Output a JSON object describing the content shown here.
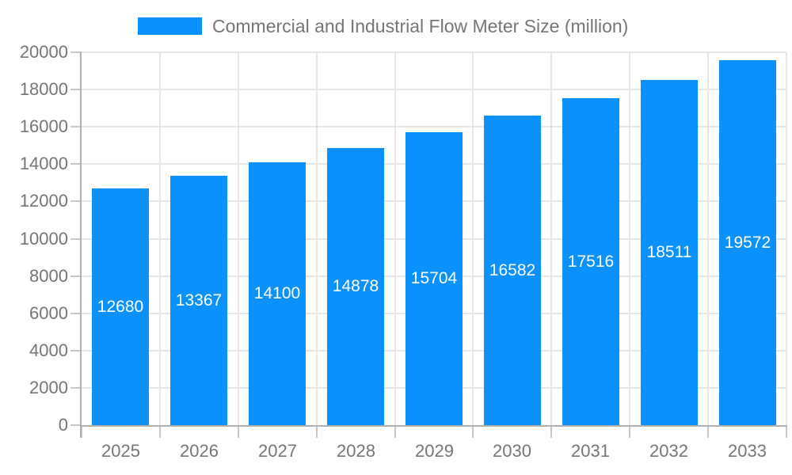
{
  "chart_data": {
    "type": "bar",
    "title": "Commercial and Industrial Flow Meter Size (million)",
    "categories": [
      "2025",
      "2026",
      "2027",
      "2028",
      "2029",
      "2030",
      "2031",
      "2032",
      "2033"
    ],
    "values": [
      12680,
      13367,
      14100,
      14878,
      15704,
      16582,
      17516,
      18511,
      19572
    ],
    "xlabel": "",
    "ylabel": "",
    "ylim": [
      0,
      20000
    ],
    "ytick_step": 2000,
    "grid": true,
    "legend_position": "top",
    "bar_label_position": "inside-center",
    "colors": {
      "bar": "#0a91fb",
      "bar_label": "#ffffff",
      "axis_text": "#757575",
      "axis_line": "#b0b0b0",
      "gridline": "#e6e6e6",
      "tick": "#c7c7c7",
      "background": "#ffffff"
    }
  }
}
